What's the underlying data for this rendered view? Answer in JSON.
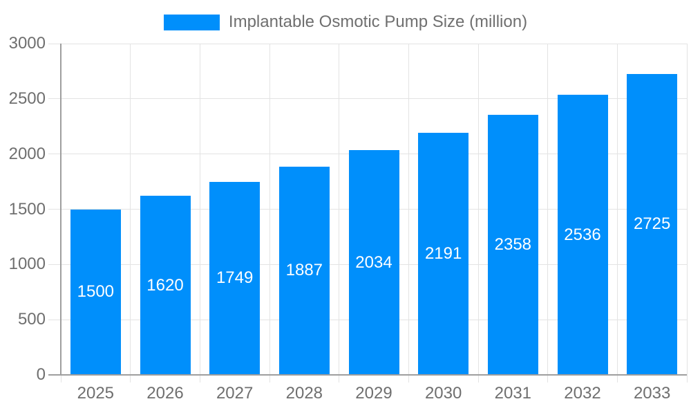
{
  "chart_data": {
    "type": "bar",
    "title": "",
    "series_name": "Implantable Osmotic Pump Size (million)",
    "categories": [
      "2025",
      "2026",
      "2027",
      "2028",
      "2029",
      "2030",
      "2031",
      "2032",
      "2033"
    ],
    "values": [
      1500,
      1620,
      1749,
      1887,
      2034,
      2191,
      2358,
      2536,
      2725
    ],
    "xlabel": "",
    "ylabel": "",
    "ylim": [
      0,
      3000
    ],
    "yticks": [
      0,
      500,
      1000,
      1500,
      2000,
      2500,
      3000
    ],
    "grid": "on",
    "legend_position": "top-center",
    "value_labels": "white numbers centered inside each bar"
  },
  "colors": {
    "bar": "#008ffb",
    "grid": "#e3e3e3",
    "axis": "#9e9e9e",
    "tick_label": "#6f6f6f",
    "value_label": "#ffffff",
    "background": "#ffffff"
  }
}
